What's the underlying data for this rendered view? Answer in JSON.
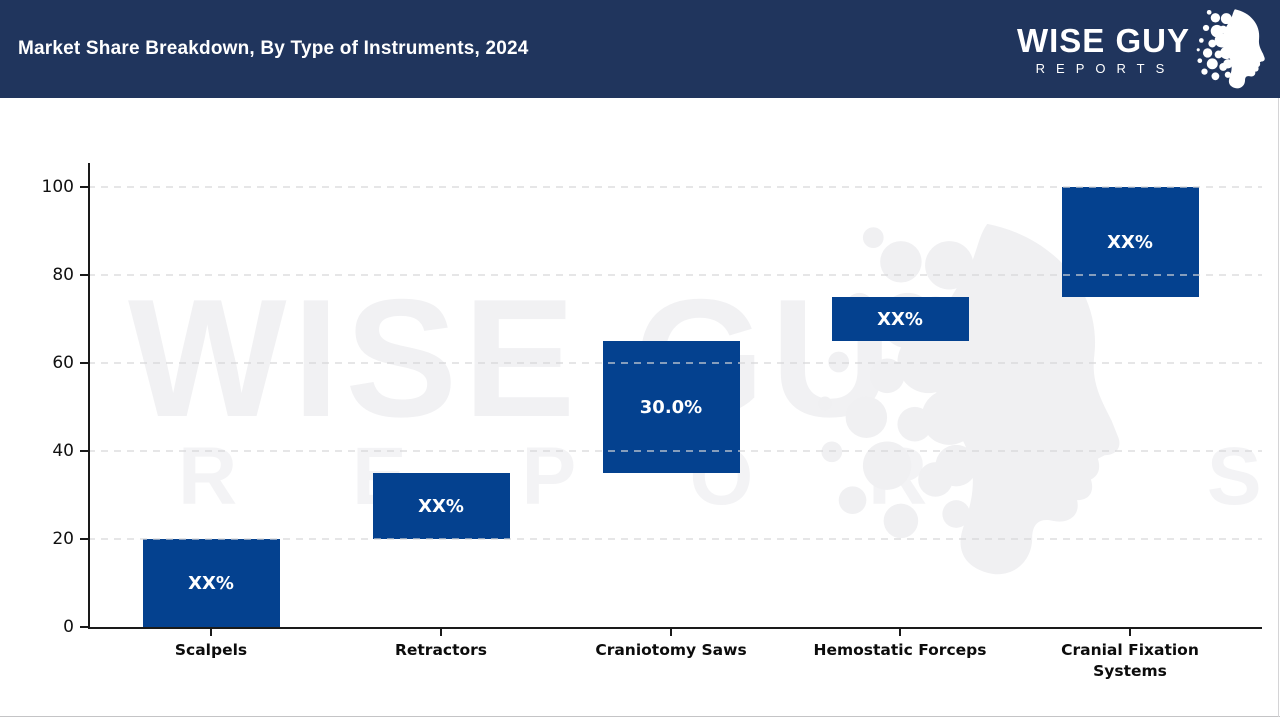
{
  "header": {
    "title": "Market Share Breakdown, By Type of Instruments, 2024",
    "logo_line1": "WISE GUY",
    "logo_line2": "REPORTS"
  },
  "watermark": {
    "line1": "WISE GUY",
    "line2": "R E P O R T S"
  },
  "colors": {
    "header_bg": "#20355d",
    "bar": "#04418f",
    "axis": "#1a1a1a",
    "grid": "#dddddd",
    "bar_label": "#ffffff",
    "watermark": "#f1f1f3"
  },
  "chart_data": {
    "type": "bar",
    "variant": "waterfall",
    "title": "Market Share Breakdown, By Type of Instruments, 2024",
    "xlabel": "",
    "ylabel": "",
    "categories": [
      "Scalpels",
      "Retractors",
      "Craniotomy Saws",
      "Hemostatic Forceps",
      "Cranial Fixation Systems"
    ],
    "segments": [
      {
        "category": "Scalpels",
        "start": 0,
        "end": 20,
        "value": 20,
        "label": "XX%"
      },
      {
        "category": "Retractors",
        "start": 20,
        "end": 35,
        "value": 15,
        "label": "XX%"
      },
      {
        "category": "Craniotomy Saws",
        "start": 35,
        "end": 65,
        "value": 30,
        "label": "30.0%"
      },
      {
        "category": "Hemostatic Forceps",
        "start": 65,
        "end": 75,
        "value": 10,
        "label": "XX%"
      },
      {
        "category": "Cranial Fixation Systems",
        "start": 75,
        "end": 100,
        "value": 25,
        "label": "XX%"
      }
    ],
    "ylim": [
      0,
      100
    ],
    "yticks": [
      0,
      20,
      40,
      60,
      80,
      100
    ],
    "grid": "horizontal-dashed",
    "legend": "none"
  }
}
